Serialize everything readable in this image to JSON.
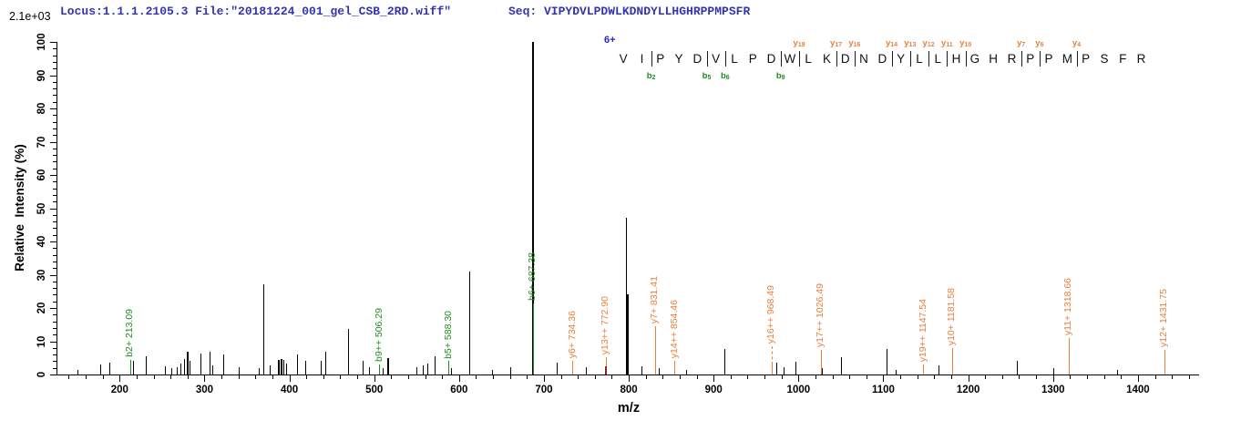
{
  "header": {
    "locus_file": "Locus:1.1.1.2105.3 File:\"20181224_001_gel_CSB_2RD.wiff\"",
    "seq_line": "Seq: VIPYDVLPDWLKDNDYLLHGHRPPMPSFR",
    "scale_note": "2.1e+03",
    "text_color": "#3434ad"
  },
  "chart_data": {
    "type": "bar",
    "subtype": "ms2-spectrum",
    "title": "",
    "xlabel": "m/z",
    "ylabel": "Relative  Intensity (%)",
    "y_axis_absolute_max": "2.1e+03",
    "x_range": [
      125.6,
      1471
    ],
    "y_range": [
      0,
      100
    ],
    "x_major_ticks": [
      200,
      300,
      400,
      500,
      600,
      700,
      800,
      900,
      1000,
      1100,
      1200,
      1300,
      1400
    ],
    "x_minor_step": 20,
    "y_major_step": 10,
    "y_minor_step": 2,
    "grid": false,
    "precursor_charge": "6+",
    "sequence": "VIPYDVLPDWLKDNDYLLHGHRPPMPSFR",
    "fragment_markers": [
      {
        "series": "b",
        "ion": "b2",
        "before": 3
      },
      {
        "series": "b",
        "ion": "b5",
        "before": 6
      },
      {
        "series": "b",
        "ion": "b6",
        "before": 7
      },
      {
        "series": "b",
        "ion": "b9",
        "before": 10
      },
      {
        "series": "y",
        "ion": "y19",
        "before": 11
      },
      {
        "series": "y",
        "ion": "y17",
        "before": 13
      },
      {
        "series": "y",
        "ion": "y16",
        "before": 14
      },
      {
        "series": "y",
        "ion": "y14",
        "before": 16
      },
      {
        "series": "y",
        "ion": "y13",
        "before": 17
      },
      {
        "series": "y",
        "ion": "y12",
        "before": 18
      },
      {
        "series": "y",
        "ion": "y11",
        "before": 19
      },
      {
        "series": "y",
        "ion": "y10",
        "before": 20
      },
      {
        "series": "y",
        "ion": "y7",
        "before": 23
      },
      {
        "series": "y",
        "ion": "y6",
        "before": 24
      },
      {
        "series": "y",
        "ion": "y4",
        "before": 26
      }
    ],
    "colors": {
      "peak": "#000000",
      "b_ion": "#1f8c1f",
      "y_ion": "#e6813e",
      "y_peak_dark": "#8b2121",
      "charge_blue": "#2424cc"
    },
    "peaks": [
      {
        "mz": 151,
        "pct": 1.5
      },
      {
        "mz": 178,
        "pct": 3.0
      },
      {
        "mz": 188,
        "pct": 3.5
      },
      {
        "mz": 213.09,
        "pct": 4.5,
        "ion": "b",
        "label": "b2+ 213.09"
      },
      {
        "mz": 216,
        "pct": 4.0
      },
      {
        "mz": 231,
        "pct": 5.5
      },
      {
        "mz": 254,
        "pct": 2.5
      },
      {
        "mz": 261,
        "pct": 1.8
      },
      {
        "mz": 268,
        "pct": 2.3
      },
      {
        "mz": 272,
        "pct": 3.2
      },
      {
        "mz": 276,
        "pct": 4.6
      },
      {
        "mz": 280,
        "pct": 6.9,
        "w": 2
      },
      {
        "mz": 283,
        "pct": 4.2
      },
      {
        "mz": 296,
        "pct": 6.4
      },
      {
        "mz": 306,
        "pct": 6.9
      },
      {
        "mz": 310,
        "pct": 2.7
      },
      {
        "mz": 323,
        "pct": 6.0
      },
      {
        "mz": 341,
        "pct": 2.3
      },
      {
        "mz": 364,
        "pct": 2.0
      },
      {
        "mz": 370,
        "pct": 27.0
      },
      {
        "mz": 377,
        "pct": 2.7
      },
      {
        "mz": 388,
        "pct": 4.3,
        "w": 2
      },
      {
        "mz": 391,
        "pct": 4.6,
        "w": 2
      },
      {
        "mz": 394,
        "pct": 4.4
      },
      {
        "mz": 397,
        "pct": 3.4
      },
      {
        "mz": 410,
        "pct": 6.0
      },
      {
        "mz": 419,
        "pct": 4.0
      },
      {
        "mz": 437,
        "pct": 4.0
      },
      {
        "mz": 443,
        "pct": 6.9
      },
      {
        "mz": 470,
        "pct": 13.8
      },
      {
        "mz": 487,
        "pct": 4.0
      },
      {
        "mz": 494,
        "pct": 2.3
      },
      {
        "mz": 506.29,
        "pct": 3.0,
        "ion": "b",
        "label": "b9++ 506.29"
      },
      {
        "mz": 510,
        "pct": 2.0
      },
      {
        "mz": 516,
        "pct": 5.0,
        "w": 2
      },
      {
        "mz": 550,
        "pct": 2.3
      },
      {
        "mz": 558,
        "pct": 2.8
      },
      {
        "mz": 563,
        "pct": 3.2
      },
      {
        "mz": 572,
        "pct": 5.5
      },
      {
        "mz": 588.3,
        "pct": 4.0,
        "ion": "b",
        "label": "b5+ 588.30"
      },
      {
        "mz": 591,
        "pct": 1.8
      },
      {
        "mz": 613,
        "pct": 31.0
      },
      {
        "mz": 639,
        "pct": 1.5
      },
      {
        "mz": 661,
        "pct": 2.3
      },
      {
        "mz": 687.0,
        "pct": 100.0,
        "w": 2
      },
      {
        "mz": 687.38,
        "pct": 21.5,
        "ion": "b",
        "label": "b6+ 687.38"
      },
      {
        "mz": 716,
        "pct": 3.5
      },
      {
        "mz": 734.36,
        "pct": 4.0,
        "ion": "y",
        "label": "y6+ 734.36"
      },
      {
        "mz": 750,
        "pct": 2.3
      },
      {
        "mz": 772.9,
        "pct": 2.5,
        "ion": "y2",
        "w": 2,
        "leader": 10,
        "label": "y13++ 772.90"
      },
      {
        "mz": 797.5,
        "pct": 47.0
      },
      {
        "mz": 798.8,
        "pct": 24.0,
        "w": 3
      },
      {
        "mz": 816,
        "pct": 2.6
      },
      {
        "mz": 831.41,
        "pct": 14.5,
        "ion": "y",
        "label": "y7+ 831.41"
      },
      {
        "mz": 836,
        "pct": 1.8
      },
      {
        "mz": 854.46,
        "pct": 4.0,
        "ion": "y",
        "label": "y14++ 854.46"
      },
      {
        "mz": 868,
        "pct": 1.4
      },
      {
        "mz": 913,
        "pct": 7.6
      },
      {
        "mz": 968.49,
        "pct": 3.0,
        "ion": "y",
        "leader": 20,
        "dashed": true,
        "label": "y16++ 968.49"
      },
      {
        "mz": 974,
        "pct": 3.5
      },
      {
        "mz": 983,
        "pct": 2.3
      },
      {
        "mz": 997,
        "pct": 3.9
      },
      {
        "mz": 1026.49,
        "pct": 7.5,
        "ion": "y",
        "label": "y17++ 1026.49"
      },
      {
        "mz": 1028,
        "pct": 1.8
      },
      {
        "mz": 1051,
        "pct": 5.3
      },
      {
        "mz": 1104,
        "pct": 7.6
      },
      {
        "mz": 1115,
        "pct": 1.4
      },
      {
        "mz": 1147.54,
        "pct": 3.0,
        "ion": "y",
        "label": "y19++ 1147.54"
      },
      {
        "mz": 1166,
        "pct": 2.8
      },
      {
        "mz": 1181.58,
        "pct": 8.0,
        "ion": "y",
        "label": "y10+ 1181.58"
      },
      {
        "mz": 1258,
        "pct": 4.1
      },
      {
        "mz": 1301,
        "pct": 1.8
      },
      {
        "mz": 1318.66,
        "pct": 11.0,
        "ion": "y",
        "label": "y11+ 1318.66"
      },
      {
        "mz": 1376,
        "pct": 1.4
      },
      {
        "mz": 1431.75,
        "pct": 7.5,
        "ion": "y",
        "label": "y12+ 1431.75"
      }
    ]
  }
}
